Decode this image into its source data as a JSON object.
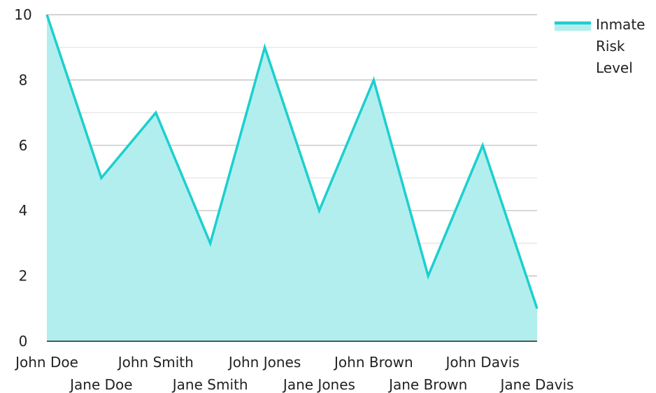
{
  "chart_data": {
    "type": "area",
    "categories": [
      "John Doe",
      "Jane Doe",
      "John Smith",
      "Jane Smith",
      "John Jones",
      "Jane Jones",
      "John Brown",
      "Jane Brown",
      "John Davis",
      "Jane Davis"
    ],
    "series": [
      {
        "name": "Inmate Risk Level",
        "name_lines": [
          "Inmate",
          "Risk",
          "Level"
        ],
        "values": [
          10,
          5,
          7,
          3,
          9,
          4,
          8,
          2,
          6,
          1
        ],
        "line_color": "#1ccfcf",
        "fill_color": "#b2eeee"
      }
    ],
    "title": "",
    "xlabel": "",
    "ylabel": "",
    "ylim": [
      0,
      10
    ],
    "yticks": [
      0,
      2,
      4,
      6,
      8,
      10
    ],
    "grid": true,
    "legend": "top-right",
    "colors": {
      "grid_major": "#bbbbbb",
      "grid_minor": "#e3e3e3",
      "axis": "#222222",
      "text": "#222222"
    }
  }
}
